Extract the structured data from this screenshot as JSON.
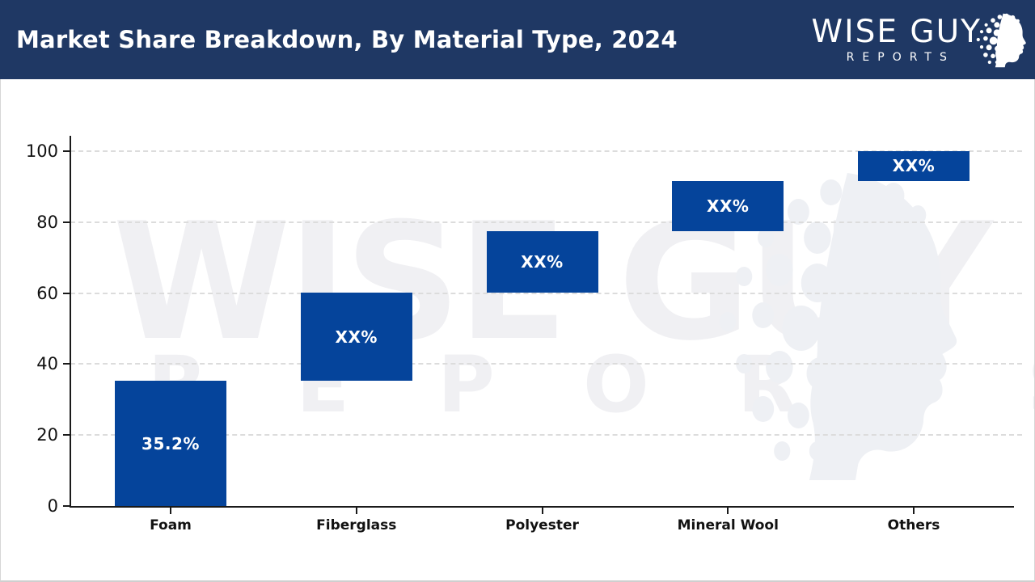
{
  "header": {
    "title": "Market Share Breakdown, By Material Type, 2024",
    "logo": {
      "line1": "WISE GUY",
      "line2": "REPORTS"
    }
  },
  "watermark": {
    "line1": "WISE GUY",
    "line2": "REPORTS"
  },
  "colors": {
    "header_bg": "#1f3864",
    "bar": "#05449b",
    "grid": "#dcdcdc",
    "axis": "#1a1a1a",
    "bar_label": "#ffffff",
    "watermark": "#f0f0f3"
  },
  "chart_data": {
    "type": "bar",
    "subtype": "waterfall",
    "title": "Market Share Breakdown, By Material Type, 2024",
    "categories": [
      "Foam",
      "Fiberglass",
      "Polyester",
      "Mineral Wool",
      "Others"
    ],
    "segments": [
      {
        "category": "Foam",
        "start": 0,
        "end": 35.2,
        "label": "35.2%"
      },
      {
        "category": "Fiberglass",
        "start": 35.2,
        "end": 60.2,
        "label": "XX%"
      },
      {
        "category": "Polyester",
        "start": 60.2,
        "end": 77.5,
        "label": "XX%"
      },
      {
        "category": "Mineral Wool",
        "start": 77.5,
        "end": 91.6,
        "label": "XX%"
      },
      {
        "category": "Others",
        "start": 91.6,
        "end": 100,
        "label": "XX%"
      }
    ],
    "xlabel": "",
    "ylabel": "",
    "ylim": [
      0,
      105
    ],
    "yticks": [
      0,
      20,
      40,
      60,
      80,
      100
    ],
    "grid": "horizontal-dashed",
    "legend": "none"
  }
}
